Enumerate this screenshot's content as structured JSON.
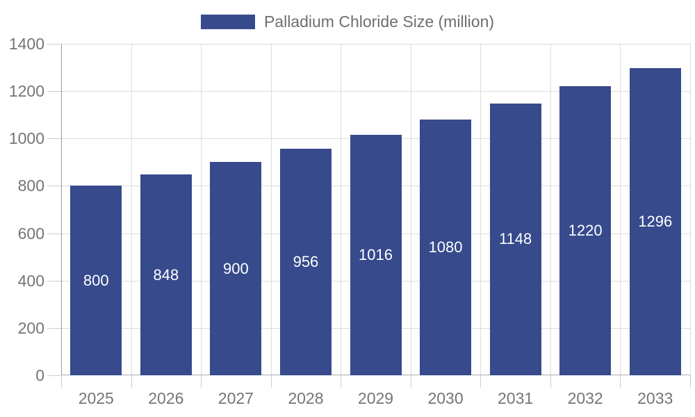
{
  "legend": {
    "label": "Palladium Chloride Size (million)"
  },
  "chart_data": {
    "type": "bar",
    "title": "Palladium Chloride Size (million)",
    "categories": [
      "2025",
      "2026",
      "2027",
      "2028",
      "2029",
      "2030",
      "2031",
      "2032",
      "2033"
    ],
    "series": [
      {
        "name": "Palladium Chloride Size (million)",
        "values": [
          800,
          848,
          900,
          956,
          1016,
          1080,
          1148,
          1220,
          1296
        ]
      }
    ],
    "xlabel": "",
    "ylabel": "",
    "ylim": [
      0,
      1400
    ],
    "yticks": [
      0,
      200,
      400,
      600,
      800,
      1000,
      1200,
      1400
    ],
    "grid": true,
    "legend_position": "top",
    "colors": {
      "bar": "#364a8c",
      "bar_label": "#ffffff",
      "axis_text": "#757575",
      "legend_text": "#6e6e6e",
      "gridline": "#dcdcdc",
      "axis_line": "#9a9a9a",
      "tick": "#c9cdd8"
    }
  }
}
